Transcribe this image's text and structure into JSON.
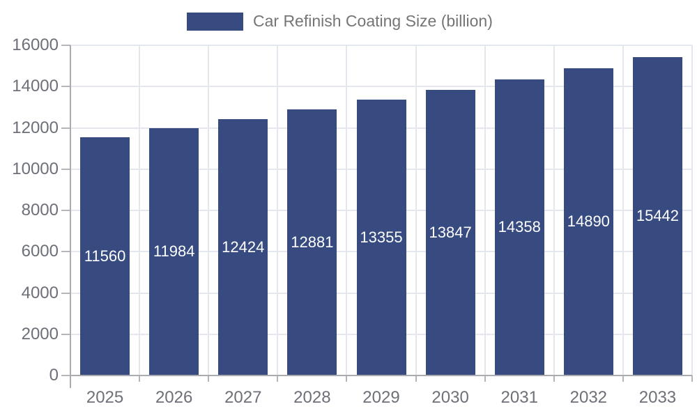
{
  "legend": {
    "label": "Car Refinish Coating Size (billion)"
  },
  "colors": {
    "bar": "#374b81",
    "bar_label_text": "#ffffff",
    "axis_text": "#6e7079",
    "legend_text": "#757575",
    "grid_line": "#e4e7ed",
    "axis_line": "#a9abb0",
    "tick_line": "#b4b6ba",
    "background": "#ffffff"
  },
  "chart_data": {
    "type": "bar",
    "title": "Car Refinish Coating Size (billion)",
    "categories": [
      "2025",
      "2026",
      "2027",
      "2028",
      "2029",
      "2030",
      "2031",
      "2032",
      "2033"
    ],
    "values": [
      11560,
      11984,
      12424,
      12881,
      13355,
      13847,
      14358,
      14890,
      15442
    ],
    "xlabel": "",
    "ylabel": "",
    "ylim": [
      0,
      16000
    ],
    "ytick_step": 2000,
    "ytick_labels": [
      "0",
      "2000",
      "4000",
      "6000",
      "8000",
      "10000",
      "12000",
      "14000",
      "16000"
    ],
    "grid": true,
    "grid_vertical": true,
    "legend_position": "top",
    "bar_label_position": "inside-center"
  }
}
